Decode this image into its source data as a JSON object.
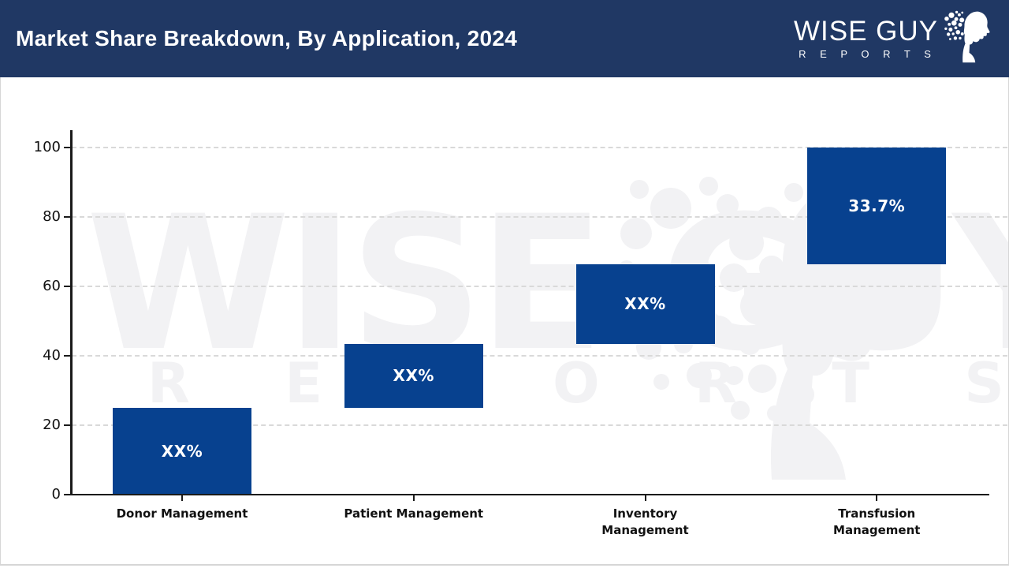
{
  "header": {
    "title": "Market Share Breakdown, By Application, 2024",
    "logo": {
      "name": "WISE GUY",
      "sub": "R E P O R T S"
    }
  },
  "watermark": {
    "name": "WISE GUY",
    "sub": "R E P O R T S"
  },
  "chart_data": {
    "type": "bar",
    "subtype": "floating-segment-waterfall",
    "title": "Market Share Breakdown, By Application, 2024",
    "categories": [
      "Donor Management",
      "Patient Management",
      "Inventory Management",
      "Transfusion Management"
    ],
    "category_label_lines": [
      [
        "Donor Management"
      ],
      [
        "Patient Management"
      ],
      [
        "Inventory",
        "Management"
      ],
      [
        "Transfusion",
        "Management"
      ]
    ],
    "segments": [
      {
        "category": "Donor Management",
        "start": 0,
        "end": 25,
        "label": "XX%"
      },
      {
        "category": "Patient Management",
        "start": 25,
        "end": 43.5,
        "label": "XX%"
      },
      {
        "category": "Inventory Management",
        "start": 43.5,
        "end": 66.3,
        "label": "XX%"
      },
      {
        "category": "Transfusion Management",
        "start": 66.3,
        "end": 100,
        "label": "33.7%"
      }
    ],
    "yticks": [
      0,
      20,
      40,
      60,
      80,
      100
    ],
    "ylim": [
      0,
      100
    ],
    "xlabel": "",
    "ylabel": "",
    "grid": {
      "horizontal": true,
      "style": "dashed"
    },
    "legend": null,
    "colors": {
      "bar": "#07418f",
      "bar_label": "#ffffff"
    }
  },
  "colors": {
    "header_bg": "#203864",
    "bar": "#07418f",
    "watermark": "#f2f2f4",
    "grid_line": "#d9d9d9",
    "axis": "#1a1a1a",
    "frame_border": "#d6d6d6"
  }
}
